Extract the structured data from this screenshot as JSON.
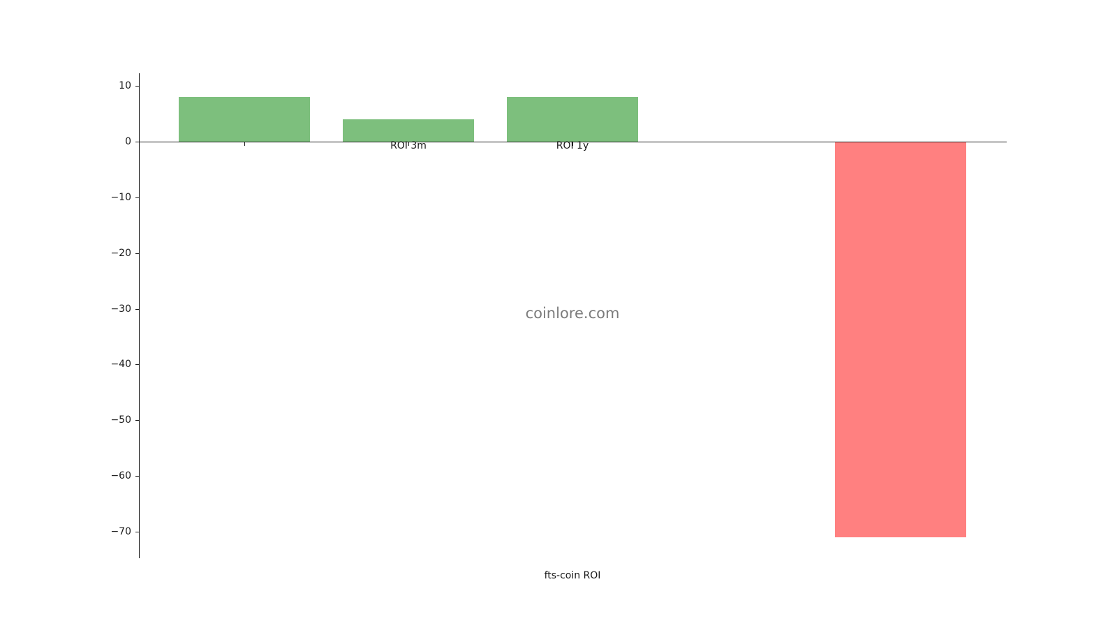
{
  "chart_data": {
    "type": "bar",
    "title": "fts-coin ROI",
    "watermark": "coinlore.com",
    "bars": [
      {
        "label": "",
        "value": 8,
        "tick": true
      },
      {
        "label": "ROI 3m",
        "value": 4,
        "tick": true
      },
      {
        "label": "ROI 1y",
        "value": 8,
        "tick": true
      },
      {
        "label": "",
        "value": 0,
        "tick": false
      },
      {
        "label": "",
        "value": -71,
        "tick": false
      }
    ],
    "ytick_values": [
      10,
      0,
      -10,
      -20,
      -30,
      -40,
      -50,
      -60,
      -70
    ],
    "ytick_labels": [
      "10",
      "0",
      "−10",
      "−20",
      "−30",
      "−40",
      "−50",
      "−60",
      "−70"
    ],
    "ylim": [
      -74.7,
      12.3
    ],
    "positive_color": "#7dbf7d",
    "negative_color": "#ff8080",
    "axis_color": "#1a1a1a",
    "watermark_color": "#7b7b7b",
    "grid": false,
    "legend": null
  }
}
